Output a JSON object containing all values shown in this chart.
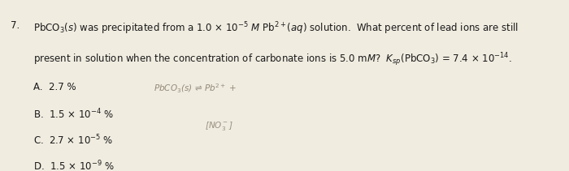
{
  "question_number": "7.",
  "question_line1": "PbCO$_3$($s$) was precipitated from a 1.0 × 10$^{-5}$ $M$ Pb$^{2+}$($aq$) solution.  What percent of lead ions are still",
  "question_line2": "present in solution when the concentration of carbonate ions is 5.0 m$M$?  $K_{sp}$(PbCO$_3$) = 7.4 × 10$^{-14}$.",
  "answer_A": "A.  2.7 %",
  "answer_B": "B.  1.5 × 10$^{-4}$ %",
  "answer_C": "C.  2.7 × 10$^{-5}$ %",
  "answer_D": "D.  1.5 × 10$^{-9}$ %",
  "handwriting_text": "PbCO$_3$($s$) ⇌ Pb$^{2+}$ +",
  "handwriting_text2": "[NO$_3^-$]",
  "bg_color": "#f0ece0",
  "text_color": "#1a1a1a",
  "hw_color": "#7a7060",
  "font_size_main": 8.5,
  "font_size_answers": 8.5,
  "font_size_hw": 7.5
}
